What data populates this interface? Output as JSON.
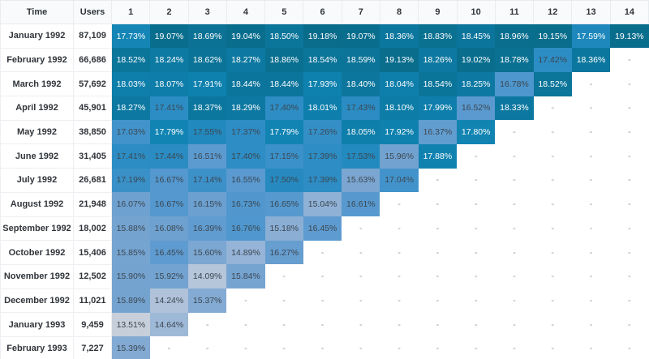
{
  "header": {
    "time_label": "Time",
    "users_label": "Users"
  },
  "colors": {
    "scale_stops": [
      [
        13.5,
        "#c7cfda"
      ],
      [
        14.1,
        "#b5c5da"
      ],
      [
        14.7,
        "#9cb8d8"
      ],
      [
        15.1,
        "#8db0d5"
      ],
      [
        15.5,
        "#7ea8d2"
      ],
      [
        16.0,
        "#71a2d0"
      ],
      [
        16.55,
        "#5a9ad0"
      ],
      [
        17.05,
        "#4193cb"
      ],
      [
        17.45,
        "#2a8cc3"
      ],
      [
        17.58,
        "#1f88bd"
      ],
      [
        17.75,
        "#1285b4"
      ],
      [
        18.0,
        "#0e7fac"
      ],
      [
        18.4,
        "#0c769d"
      ],
      [
        18.8,
        "#0a7192"
      ],
      [
        19.2,
        "#096c8b"
      ]
    ],
    "white_text_threshold": 17.57,
    "text_on_dark": "#ffffff",
    "text_on_light": "#3c4650",
    "empty_text": "#969ca2",
    "header_bg": "#f9fafb",
    "border": "#e9ecef"
  },
  "chart_data": {
    "type": "heatmap",
    "value_format": "percent",
    "empty_marker": "-",
    "columns": [
      "1",
      "2",
      "3",
      "4",
      "5",
      "6",
      "7",
      "8",
      "9",
      "10",
      "11",
      "12",
      "13",
      "14"
    ],
    "rows": [
      {
        "time": "January 1992",
        "users": "87,109",
        "values": [
          17.73,
          19.07,
          18.69,
          19.04,
          18.5,
          19.18,
          19.07,
          18.36,
          18.83,
          18.45,
          18.96,
          19.15,
          17.59,
          19.13
        ]
      },
      {
        "time": "February 1992",
        "users": "66,686",
        "values": [
          18.52,
          18.24,
          18.62,
          18.27,
          18.86,
          18.54,
          18.59,
          19.13,
          18.26,
          19.02,
          18.78,
          17.42,
          18.36,
          null
        ]
      },
      {
        "time": "March 1992",
        "users": "57,692",
        "values": [
          18.03,
          18.07,
          17.91,
          18.44,
          18.44,
          17.93,
          18.4,
          18.04,
          18.54,
          18.25,
          16.78,
          18.52,
          null,
          null
        ]
      },
      {
        "time": "April 1992",
        "users": "45,901",
        "values": [
          18.27,
          17.41,
          18.37,
          18.29,
          17.4,
          18.01,
          17.43,
          18.1,
          17.99,
          16.52,
          18.33,
          null,
          null,
          null
        ]
      },
      {
        "time": "May 1992",
        "users": "38,850",
        "values": [
          17.03,
          17.79,
          17.55,
          17.37,
          17.79,
          17.26,
          18.05,
          17.92,
          16.37,
          17.8,
          null,
          null,
          null,
          null
        ]
      },
      {
        "time": "June 1992",
        "users": "31,405",
        "values": [
          17.41,
          17.44,
          16.51,
          17.4,
          17.15,
          17.39,
          17.53,
          15.96,
          17.88,
          null,
          null,
          null,
          null,
          null
        ]
      },
      {
        "time": "July 1992",
        "users": "26,681",
        "values": [
          17.19,
          16.67,
          17.14,
          16.55,
          17.5,
          17.39,
          15.63,
          17.04,
          null,
          null,
          null,
          null,
          null,
          null
        ]
      },
      {
        "time": "August 1992",
        "users": "21,948",
        "values": [
          16.07,
          16.67,
          16.15,
          16.73,
          16.65,
          15.04,
          16.61,
          null,
          null,
          null,
          null,
          null,
          null,
          null
        ]
      },
      {
        "time": "September 1992",
        "users": "18,002",
        "values": [
          15.88,
          16.08,
          16.39,
          16.76,
          15.18,
          16.45,
          null,
          null,
          null,
          null,
          null,
          null,
          null,
          null
        ]
      },
      {
        "time": "October 1992",
        "users": "15,406",
        "values": [
          15.85,
          16.45,
          15.6,
          14.89,
          16.27,
          null,
          null,
          null,
          null,
          null,
          null,
          null,
          null,
          null
        ]
      },
      {
        "time": "November 1992",
        "users": "12,502",
        "values": [
          15.9,
          15.92,
          14.09,
          15.84,
          null,
          null,
          null,
          null,
          null,
          null,
          null,
          null,
          null,
          null
        ]
      },
      {
        "time": "December 1992",
        "users": "11,021",
        "values": [
          15.89,
          14.24,
          15.37,
          null,
          null,
          null,
          null,
          null,
          null,
          null,
          null,
          null,
          null,
          null
        ]
      },
      {
        "time": "January 1993",
        "users": "9,459",
        "values": [
          13.51,
          14.64,
          null,
          null,
          null,
          null,
          null,
          null,
          null,
          null,
          null,
          null,
          null,
          null
        ]
      },
      {
        "time": "February 1993",
        "users": "7,227",
        "values": [
          15.39,
          null,
          null,
          null,
          null,
          null,
          null,
          null,
          null,
          null,
          null,
          null,
          null,
          null
        ]
      }
    ]
  }
}
